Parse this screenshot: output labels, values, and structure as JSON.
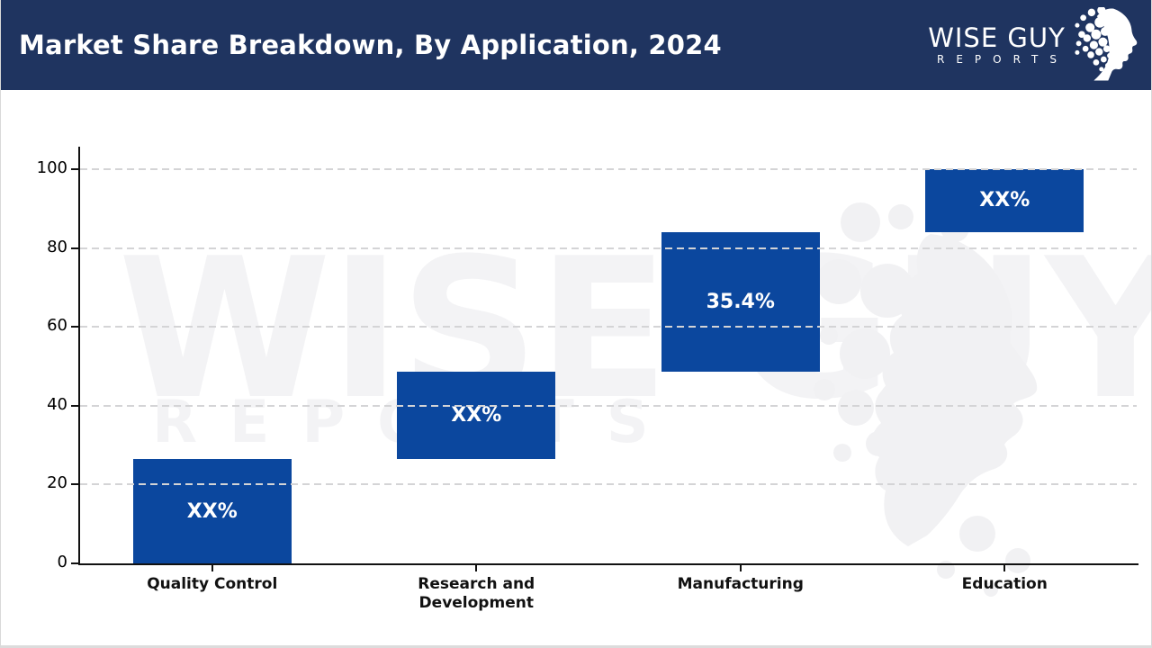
{
  "header": {
    "title": "Market Share Breakdown, By Application, 2024",
    "logo": {
      "line1": "WISE GUY",
      "line2": "REPORTS"
    }
  },
  "watermark": {
    "line1": "WISE GUY",
    "line2": "REPORTS"
  },
  "colors": {
    "header_bg": "#1f3460",
    "bar": "#0b479e",
    "watermark": "#f3f3f5",
    "gridline": "#d4d4d6",
    "axis": "#111111",
    "title_text": "#ffffff",
    "bar_label_text": "#ffffff"
  },
  "chart_data": {
    "type": "bar",
    "subtype": "waterfall",
    "title": "Market Share Breakdown, By Application, 2024",
    "categories": [
      "Quality Control",
      "Research and Development",
      "Manufacturing",
      "Education"
    ],
    "segments": [
      {
        "category": "Quality Control",
        "label_lines": [
          "Quality Control"
        ],
        "start": 0,
        "end": 26.4,
        "value": 26.4,
        "label": "XX%"
      },
      {
        "category": "Research and Development",
        "label_lines": [
          "Research and",
          "Development"
        ],
        "start": 26.4,
        "end": 48.7,
        "value": 22.3,
        "label": "XX%"
      },
      {
        "category": "Manufacturing",
        "label_lines": [
          "Manufacturing"
        ],
        "start": 48.7,
        "end": 84.1,
        "value": 35.4,
        "label": "35.4%"
      },
      {
        "category": "Education",
        "label_lines": [
          "Education"
        ],
        "start": 84.1,
        "end": 100,
        "value": 15.9,
        "label": "XX%"
      }
    ],
    "yticks": [
      0,
      20,
      40,
      60,
      80,
      100
    ],
    "ylim": [
      0,
      100
    ],
    "xlabel": "",
    "ylabel": "",
    "grid": "horizontal-dashed-over-bars",
    "legend": "none",
    "bar_color": "#0b479e"
  }
}
